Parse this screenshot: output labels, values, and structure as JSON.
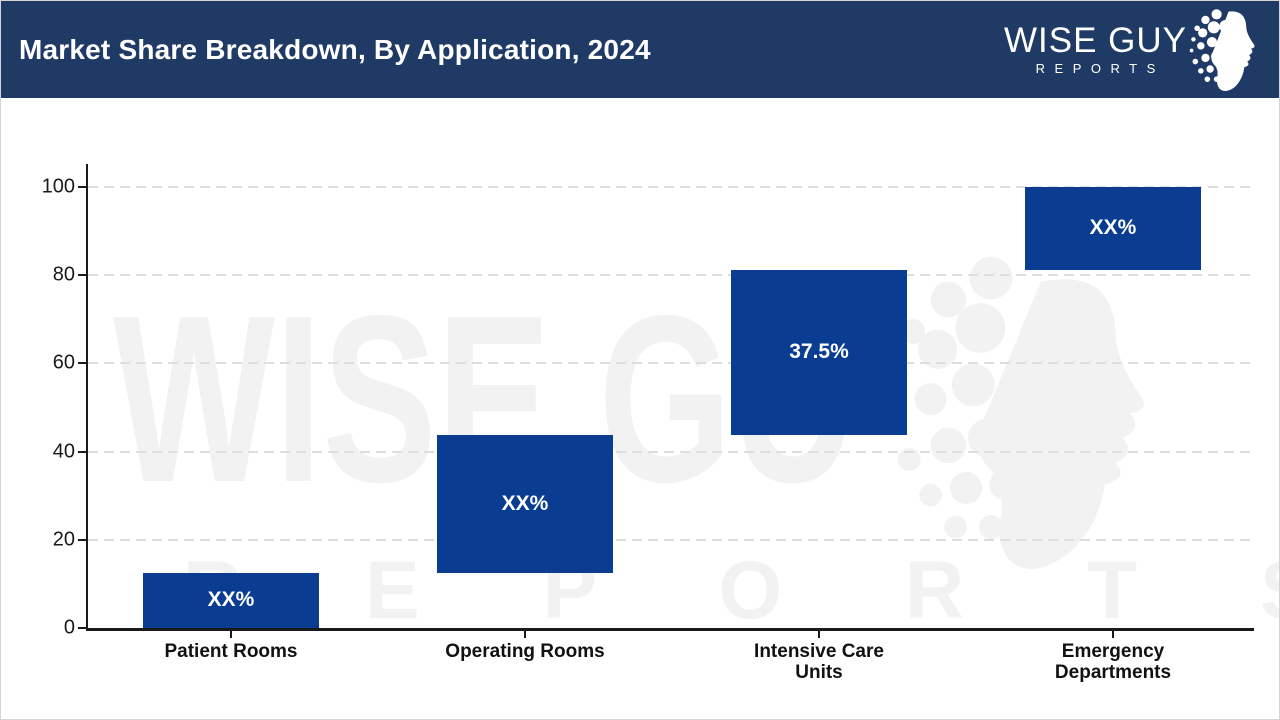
{
  "header": {
    "title": "Market Share Breakdown, By Application, 2024",
    "logo": {
      "line1": "WISE GUY",
      "line2": "REPORTS"
    }
  },
  "watermark": {
    "line1": "WISE GU",
    "line2": "R E P O R T S"
  },
  "chart_data": {
    "type": "bar",
    "subtype": "floating-waterfall-segments",
    "title": "Market Share Breakdown, By Application, 2024",
    "categories": [
      "Patient Rooms",
      "Operating Rooms",
      "Intensive Care\nUnits",
      "Emergency\nDepartments"
    ],
    "bars": [
      {
        "category": "Patient Rooms",
        "label": "XX%",
        "start": 0,
        "end": 12.5
      },
      {
        "category": "Operating Rooms",
        "label": "XX%",
        "start": 12.5,
        "end": 43.75
      },
      {
        "category": "Intensive Care Units",
        "label": "37.5%",
        "start": 43.75,
        "end": 81.25
      },
      {
        "category": "Emergency Departments",
        "label": "XX%",
        "start": 81.25,
        "end": 100
      }
    ],
    "y_ticks": [
      0,
      20,
      40,
      60,
      80,
      100
    ],
    "ylim": [
      0,
      105
    ],
    "xlabel": "",
    "ylabel": "",
    "grid": "horizontal-dashed",
    "legend": "none",
    "bar_color": "#0a3d91",
    "value_label_color": "#ffffff"
  },
  "colors": {
    "header_bg": "#203a66",
    "bar": "#0a3d91",
    "grid": "#dedede",
    "axis": "#1a1a1a",
    "watermark": "#f2f2f3"
  }
}
